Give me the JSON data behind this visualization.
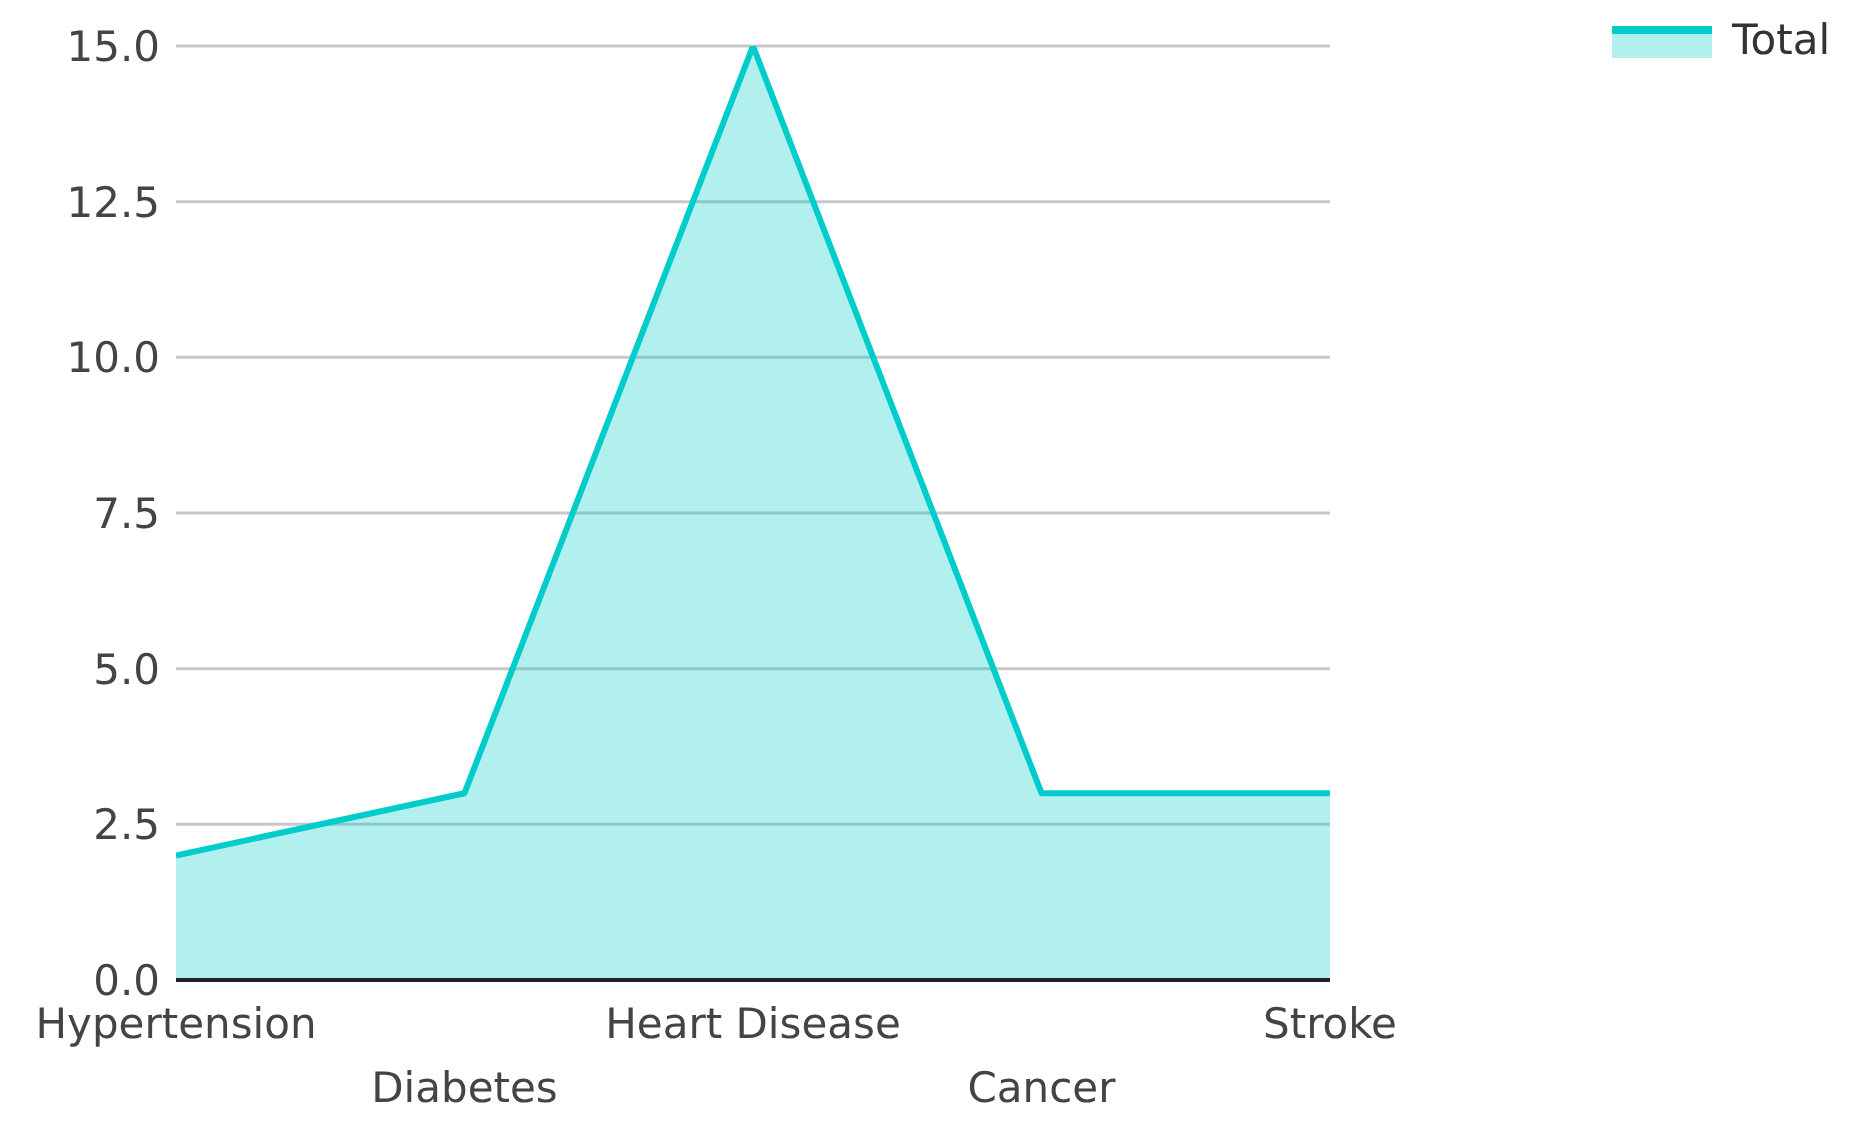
{
  "chart_data": {
    "type": "area",
    "categories": [
      "Hypertension",
      "Diabetes",
      "Heart Disease",
      "Cancer",
      "Stroke"
    ],
    "series": [
      {
        "name": "Total",
        "color": "#00cccc",
        "values": [
          2,
          3,
          15,
          3,
          3
        ]
      }
    ],
    "ylim": [
      0,
      15
    ],
    "yticks": [
      {
        "value": 0,
        "label": "0.0"
      },
      {
        "value": 2.5,
        "label": "2.5"
      },
      {
        "value": 5,
        "label": "5.0"
      },
      {
        "value": 7.5,
        "label": "7.5"
      },
      {
        "value": 10,
        "label": "10.0"
      },
      {
        "value": 12.5,
        "label": "12.5"
      },
      {
        "value": 15,
        "label": "15.0"
      }
    ],
    "grid": "y",
    "legend": "top right"
  }
}
